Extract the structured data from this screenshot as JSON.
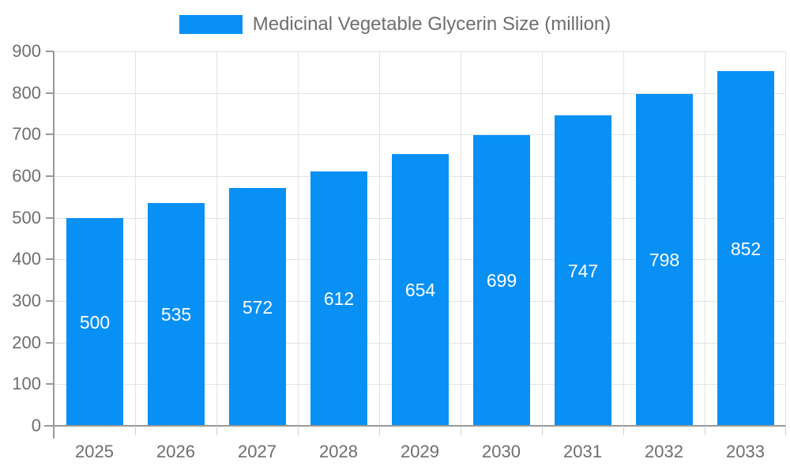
{
  "chart_data": {
    "type": "bar",
    "title": "Medicinal Vegetable Glycerin Size (million)",
    "categories": [
      "2025",
      "2026",
      "2027",
      "2028",
      "2029",
      "2030",
      "2031",
      "2032",
      "2033"
    ],
    "values": [
      500,
      535,
      572,
      612,
      654,
      699,
      747,
      798,
      852
    ],
    "xlabel": "",
    "ylabel": "",
    "ylim": [
      0,
      900
    ],
    "yticks": [
      0,
      100,
      200,
      300,
      400,
      500,
      600,
      700,
      800,
      900
    ],
    "grid": true,
    "legend_position": "top-center",
    "value_label_position": "inside-center",
    "colors": {
      "bar": "#0990F5",
      "value_label": "#FFFFFF",
      "axis_text": "#6E6E6E",
      "gridline": "#E3E3E3",
      "axis_line": "#999999",
      "boundary_tick": "#CFCFCF",
      "background": "#FFFFFF"
    }
  }
}
